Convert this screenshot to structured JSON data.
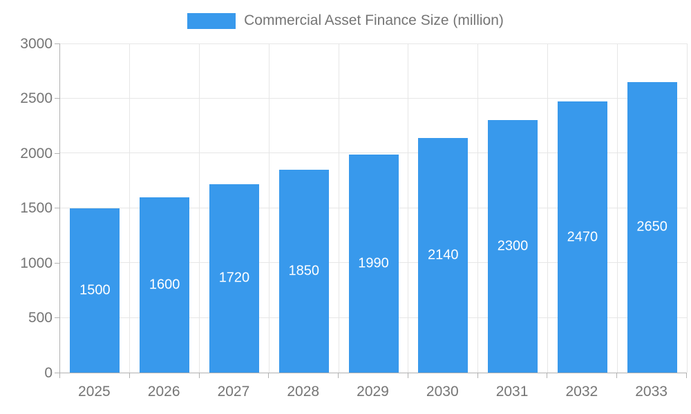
{
  "chart_data": {
    "type": "bar",
    "title": "",
    "legend": "Commercial Asset Finance Size (million)",
    "legend_position": "top",
    "series_name": "Commercial Asset Finance Size (million)",
    "categories": [
      "2025",
      "2026",
      "2027",
      "2028",
      "2029",
      "2030",
      "2031",
      "2032",
      "2033"
    ],
    "values": [
      1500,
      1600,
      1720,
      1850,
      1990,
      2140,
      2300,
      2470,
      2650
    ],
    "bar_value_labels": [
      "1500",
      "1600",
      "1720",
      "1850",
      "1990",
      "2140",
      "2300",
      "2470",
      "2650"
    ],
    "xlabel": "",
    "ylabel": "",
    "ylim": [
      0,
      3000
    ],
    "yticks": [
      0,
      500,
      1000,
      1500,
      2000,
      2500,
      3000
    ],
    "grid": true,
    "colors": {
      "bar": "#3899EC",
      "gridline": "#e6e6e6",
      "axis_line": "#b1b1b1",
      "axis_text": "#757575",
      "bar_label_text": "#ffffff",
      "background": "#ffffff"
    }
  }
}
